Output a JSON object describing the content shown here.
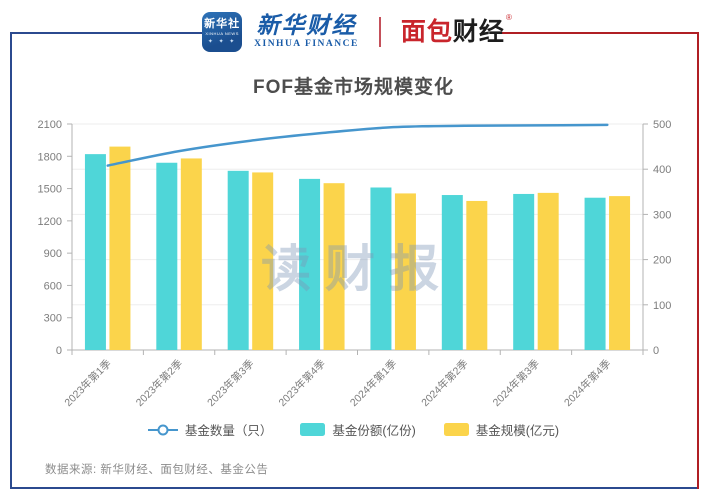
{
  "header": {
    "xinhua_news_badge": {
      "name": "新华社",
      "sub": "XINHUA NEWS",
      "dots": "✦ ✦ ✦"
    },
    "xinhua_finance": {
      "name": "新华财经",
      "sub": "XINHUA FINANCE"
    },
    "bread_finance": {
      "name_red": "面包",
      "name_black": "财经",
      "reg_mark": "®"
    }
  },
  "colors": {
    "frame_blue": "#2B4A8F",
    "frame_red": "#B01F24",
    "axis_line": "#b3b3b3",
    "grid_line": "#ededed",
    "axis_label": "#7d7d7d"
  },
  "chart_data": {
    "type": "bar",
    "subtype": "grouped bars + smooth line, dual y-axis",
    "title": "FOF基金市场规模变化",
    "categories": [
      "2023年第1季",
      "2023年第2季",
      "2023年第3季",
      "2023年第4季",
      "2024年第1季",
      "2024年第2季",
      "2024年第3季",
      "2024年第4季"
    ],
    "bar_series": [
      {
        "name": "基金份额(亿份)",
        "color": "#4FD6D8",
        "axis": "left",
        "values": [
          1820,
          1740,
          1665,
          1590,
          1510,
          1440,
          1450,
          1415
        ]
      },
      {
        "name": "基金规模(亿元)",
        "color": "#FBD44B",
        "axis": "left",
        "values": [
          1890,
          1780,
          1650,
          1550,
          1455,
          1385,
          1460,
          1430
        ]
      }
    ],
    "line_series": {
      "name": "基金数量（只）",
      "color": "#4696CD",
      "axis": "right",
      "values": [
        408,
        440,
        463,
        480,
        493,
        496,
        497,
        498
      ]
    },
    "left_axis": {
      "min": 0,
      "max": 2100,
      "step": 300,
      "ticks": [
        "0",
        "300",
        "600",
        "900",
        "1200",
        "1500",
        "1800",
        "2100"
      ]
    },
    "right_axis": {
      "min": 0,
      "max": 500,
      "step": 100,
      "ticks": [
        "0",
        "100",
        "200",
        "300",
        "400",
        "500"
      ]
    },
    "grid": true,
    "legend_position": "bottom",
    "watermark": "读财报"
  },
  "footer": {
    "source": "数据来源: 新华财经、面包财经、基金公告"
  }
}
